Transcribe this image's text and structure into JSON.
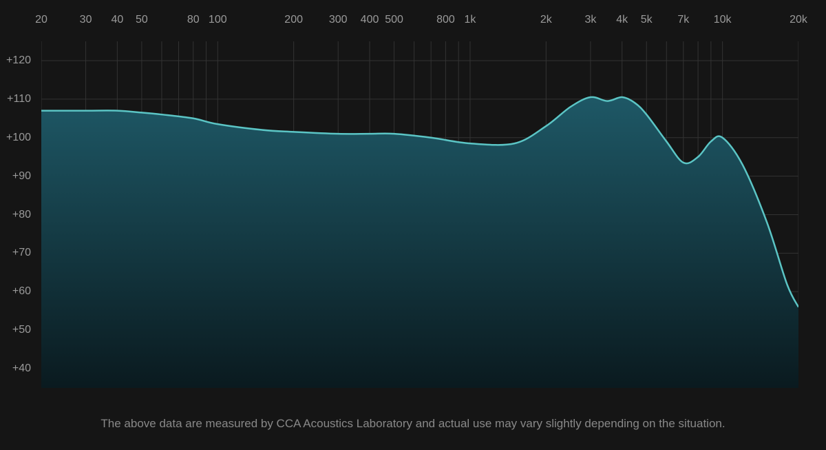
{
  "chart": {
    "type": "area",
    "background_color": "#151515",
    "line_color": "#5bc5c5",
    "fill_color_top": "#1e5866",
    "fill_color_bottom": "#0a1a1f",
    "grid_color": "#333333",
    "grid_color_major": "#3a3a3a",
    "text_color": "#9a9a9a",
    "caption_color": "#888888",
    "line_width": 2.5,
    "label_fontsize": 16,
    "caption_fontsize": 17,
    "x_axis": {
      "scale": "log",
      "min": 20,
      "max": 20000,
      "ticks": [
        20,
        30,
        40,
        50,
        80,
        100,
        200,
        300,
        400,
        500,
        800,
        1000,
        2000,
        3000,
        4000,
        5000,
        7000,
        10000,
        20000
      ],
      "tick_labels": [
        "20",
        "30",
        "40",
        "50",
        "80",
        "100",
        "200",
        "300",
        "400",
        "500",
        "800",
        "1k",
        "2k",
        "3k",
        "4k",
        "5k",
        "7k",
        "10k",
        "20k"
      ],
      "grid_lines": [
        20,
        30,
        40,
        50,
        60,
        70,
        80,
        90,
        100,
        200,
        300,
        400,
        500,
        600,
        700,
        800,
        900,
        1000,
        2000,
        3000,
        4000,
        5000,
        6000,
        7000,
        8000,
        9000,
        10000,
        20000
      ]
    },
    "y_axis": {
      "scale": "linear",
      "min": 35,
      "max": 125,
      "ticks": [
        40,
        50,
        60,
        70,
        80,
        90,
        100,
        110,
        120
      ],
      "tick_labels": [
        "+40",
        "+50",
        "+60",
        "+70",
        "+80",
        "+90",
        "+100",
        "+110",
        "+120"
      ]
    },
    "data": {
      "x": [
        20,
        30,
        40,
        50,
        60,
        80,
        100,
        150,
        200,
        300,
        400,
        500,
        700,
        1000,
        1500,
        2000,
        2500,
        3000,
        3500,
        4000,
        4500,
        5000,
        6000,
        7000,
        8000,
        9000,
        10000,
        12000,
        15000,
        18000,
        20000
      ],
      "y": [
        107,
        107,
        107,
        106.5,
        106,
        105,
        103.5,
        102,
        101.5,
        101,
        101,
        101,
        100,
        98.5,
        98.5,
        103,
        108,
        110.5,
        109.5,
        110.5,
        109,
        106,
        99,
        93.5,
        95,
        99,
        100,
        93,
        78,
        62,
        56
      ]
    }
  },
  "caption": "The above data are measured by CCA Acoustics Laboratory and actual use may vary slightly depending on the situation."
}
